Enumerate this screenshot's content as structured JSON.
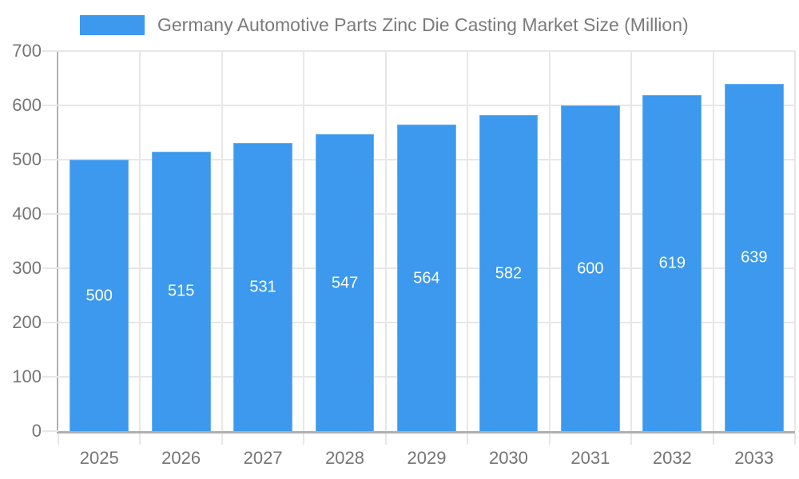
{
  "colors": {
    "background": "#FFFFFF",
    "bar": "#3C99ED",
    "bar_border": "#6FB1F0",
    "grid": "#E7E7E7",
    "axis": "#B0B0B0",
    "tick_text": "#757575",
    "title_text": "#7B7B7B",
    "value_label": "#FFFFFF"
  },
  "chart_data": {
    "type": "bar",
    "title": "Germany Automotive Parts Zinc Die Casting Market Size (Million)",
    "categories": [
      "2025",
      "2026",
      "2027",
      "2028",
      "2029",
      "2030",
      "2031",
      "2032",
      "2033"
    ],
    "values": [
      500,
      515,
      531,
      547,
      564,
      582,
      600,
      619,
      639
    ],
    "xlabel": "",
    "ylabel": "",
    "ylim": [
      0,
      700
    ],
    "ytick_step": 100,
    "yticks": [
      0,
      100,
      200,
      300,
      400,
      500,
      600,
      700
    ],
    "grid": true,
    "legend_position": "top-left",
    "value_labels_position": "inside-center",
    "bar_width_fraction": 0.72
  }
}
